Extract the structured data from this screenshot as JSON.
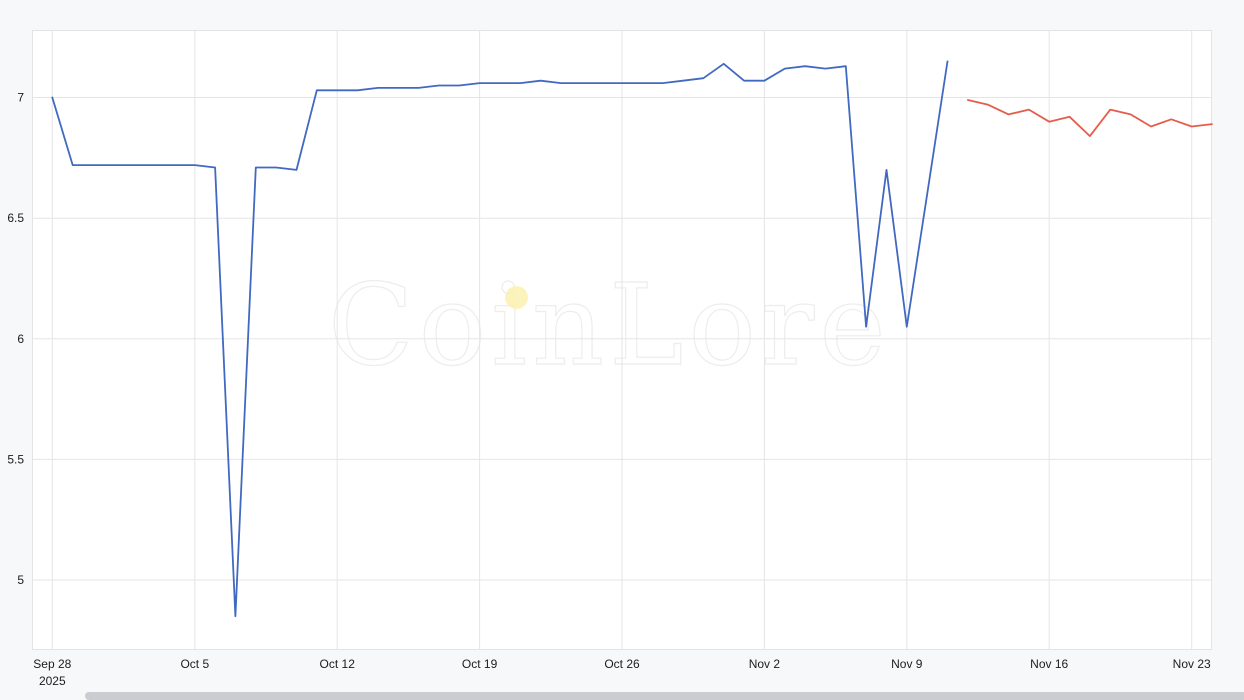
{
  "watermark": {
    "text": "CoinLore"
  },
  "chart_data": {
    "type": "line",
    "title": "",
    "xlabel": "",
    "ylabel": "",
    "ylim": [
      4.71,
      7.28
    ],
    "grid": true,
    "legend": "none",
    "colors": {
      "line_history": "#4169c1",
      "line_forecast": "#e55d4a",
      "grid": "#e5e5e5",
      "plot_border": "#e4e4e4",
      "page_bg": "#f7f8f9",
      "plot_bg": "#ffffff",
      "watermark_dot": "#faf0aa",
      "axis_text": "#1c1c1c"
    },
    "y_ticks": [
      {
        "label": "7",
        "value": 7.0
      },
      {
        "label": "6.5",
        "value": 6.5
      },
      {
        "label": "6",
        "value": 6.0
      },
      {
        "label": "5.5",
        "value": 5.5
      },
      {
        "label": "5",
        "value": 5.0
      }
    ],
    "x_ticks": [
      {
        "label": "Sep 28",
        "sublabel": "2025",
        "day": 0
      },
      {
        "label": "Oct 5",
        "day": 7
      },
      {
        "label": "Oct 12",
        "day": 14
      },
      {
        "label": "Oct 19",
        "day": 21
      },
      {
        "label": "Oct 26",
        "day": 28
      },
      {
        "label": "Nov 2",
        "day": 35
      },
      {
        "label": "Nov 9",
        "day": 42
      },
      {
        "label": "Nov 16",
        "day": 49
      },
      {
        "label": "Nov 23",
        "day": 56
      }
    ],
    "series": [
      {
        "name": "price-history",
        "color_key": "line_history",
        "points": [
          [
            0,
            7.0
          ],
          [
            1,
            6.72
          ],
          [
            2,
            6.72
          ],
          [
            3,
            6.72
          ],
          [
            4,
            6.72
          ],
          [
            5,
            6.72
          ],
          [
            6,
            6.72
          ],
          [
            7,
            6.72
          ],
          [
            8,
            6.71
          ],
          [
            9,
            4.85
          ],
          [
            10,
            6.71
          ],
          [
            11,
            6.71
          ],
          [
            12,
            6.7
          ],
          [
            13,
            7.03
          ],
          [
            14,
            7.03
          ],
          [
            15,
            7.03
          ],
          [
            16,
            7.04
          ],
          [
            17,
            7.04
          ],
          [
            18,
            7.04
          ],
          [
            19,
            7.05
          ],
          [
            20,
            7.05
          ],
          [
            21,
            7.06
          ],
          [
            22,
            7.06
          ],
          [
            23,
            7.06
          ],
          [
            24,
            7.07
          ],
          [
            25,
            7.06
          ],
          [
            26,
            7.06
          ],
          [
            27,
            7.06
          ],
          [
            28,
            7.06
          ],
          [
            29,
            7.06
          ],
          [
            30,
            7.06
          ],
          [
            31,
            7.07
          ],
          [
            32,
            7.08
          ],
          [
            33,
            7.14
          ],
          [
            34,
            7.07
          ],
          [
            35,
            7.07
          ],
          [
            36,
            7.12
          ],
          [
            37,
            7.13
          ],
          [
            38,
            7.12
          ],
          [
            39,
            7.13
          ],
          [
            40,
            6.05
          ],
          [
            41,
            6.7
          ],
          [
            42,
            6.05
          ],
          [
            43,
            6.6
          ],
          [
            44,
            7.15
          ]
        ]
      },
      {
        "name": "price-forecast",
        "color_key": "line_forecast",
        "points": [
          [
            45,
            6.99
          ],
          [
            46,
            6.97
          ],
          [
            47,
            6.93
          ],
          [
            48,
            6.95
          ],
          [
            49,
            6.9
          ],
          [
            50,
            6.92
          ],
          [
            51,
            6.84
          ],
          [
            52,
            6.95
          ],
          [
            53,
            6.93
          ],
          [
            54,
            6.88
          ],
          [
            55,
            6.91
          ],
          [
            56,
            6.88
          ],
          [
            57,
            6.89
          ]
        ]
      }
    ]
  }
}
